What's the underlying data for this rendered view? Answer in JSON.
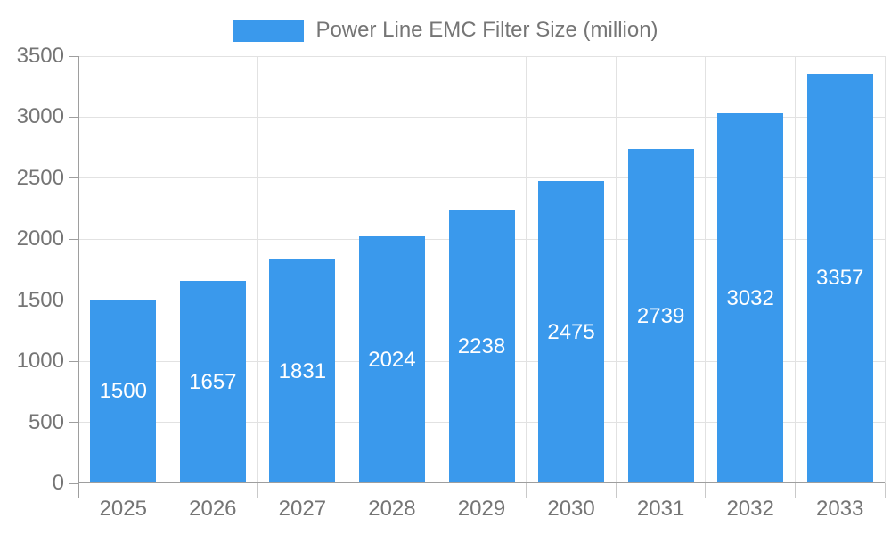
{
  "legend": {
    "label": "Power Line EMC Filter Size (million)",
    "swatch_color": "#3a99ec"
  },
  "chart_data": {
    "type": "bar",
    "title": "Power Line EMC Filter Size (million)",
    "categories": [
      "2025",
      "2026",
      "2027",
      "2028",
      "2029",
      "2030",
      "2031",
      "2032",
      "2033"
    ],
    "values": [
      1500,
      1657,
      1831,
      2024,
      2238,
      2475,
      2739,
      3032,
      3357
    ],
    "xlabel": "",
    "ylabel": "",
    "ylim": [
      0,
      3500
    ],
    "ytick_step": 500,
    "ytick_labels": [
      "0",
      "500",
      "1000",
      "1500",
      "2000",
      "2500",
      "3000",
      "3500"
    ],
    "grid": true,
    "legend_position": "top-center",
    "value_labels": "centered-inside-bars",
    "colors": {
      "bar": "#3a99ec",
      "value_label": "#ffffff",
      "axis_text": "#757575",
      "gridline": "#e2e2e2",
      "axis_line": "#9e9e9e"
    }
  }
}
